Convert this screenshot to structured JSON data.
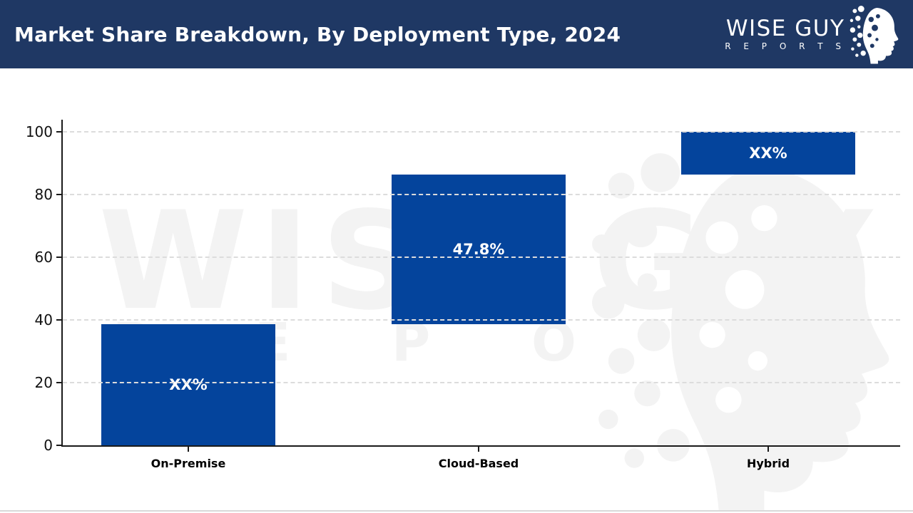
{
  "header": {
    "title": "Market Share Breakdown, By Deployment Type, 2024",
    "logo": {
      "line1": "WISE GUY",
      "line2": "R E P O R T S"
    }
  },
  "watermark": {
    "line1": "WISE G Y",
    "line2": "R E P O R T S"
  },
  "colors": {
    "header_bg": "#1F3864",
    "bar": "#04449C",
    "bar_label": "#FFFFFF",
    "gridline": "#DCDCDC",
    "axis": "#1A1A1A",
    "watermark": "#F3F3F3"
  },
  "chart_data": {
    "type": "bar",
    "subtype": "floating-waterfall",
    "title": "Market Share Breakdown, By Deployment Type, 2024",
    "categories": [
      "On-Premise",
      "Cloud-Based",
      "Hybrid"
    ],
    "segments": [
      {
        "category": "On-Premise",
        "from": 0,
        "to": 38.6,
        "label": "XX%"
      },
      {
        "category": "Cloud-Based",
        "from": 38.6,
        "to": 86.4,
        "label": "47.8%"
      },
      {
        "category": "Hybrid",
        "from": 86.4,
        "to": 100,
        "label": "XX%"
      }
    ],
    "yticks": [
      0,
      20,
      40,
      60,
      80,
      100
    ],
    "ylim": [
      0,
      100
    ],
    "xlabel": "",
    "ylabel": "",
    "grid": "dashed-horizontal-over-bars",
    "legend": "none"
  }
}
